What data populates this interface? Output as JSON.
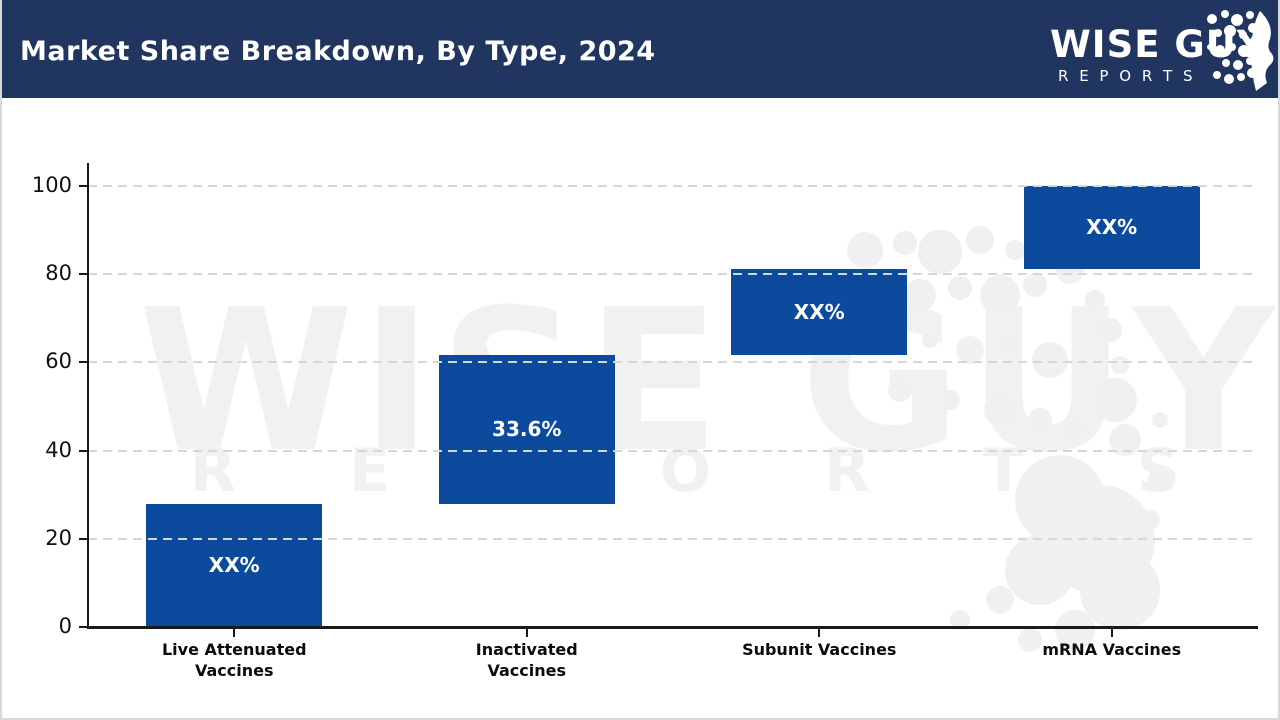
{
  "header": {
    "title": "Market Share Breakdown, By Type, 2024",
    "logo": {
      "line1": "WISE GUY",
      "line2": "R E P O R T S"
    }
  },
  "watermark": {
    "line1": "WISE GUY",
    "line2": "R E P O R T S"
  },
  "chart_data": {
    "type": "bar",
    "subtype": "floating-waterfall",
    "title": "Market Share Breakdown, By Type, 2024",
    "xlabel": "",
    "ylabel": "",
    "ylim": [
      0,
      105
    ],
    "yticks": [
      0,
      20,
      40,
      60,
      80,
      100
    ],
    "grid": "horizontal-dashed",
    "legend": "none",
    "categories": [
      "Live Attenuated Vaccines",
      "Inactivated Vaccines",
      "Subunit Vaccines",
      "mRNA Vaccines"
    ],
    "bars": [
      {
        "category": "Live Attenuated Vaccines",
        "cat_lines": "Live Attenuated\nVaccines",
        "from": 0,
        "to": 28,
        "height": 28,
        "label": "XX%"
      },
      {
        "category": "Inactivated Vaccines",
        "cat_lines": "Inactivated\nVaccines",
        "from": 28,
        "to": 61.6,
        "height": 33.6,
        "label": "33.6%"
      },
      {
        "category": "Subunit Vaccines",
        "cat_lines": "Subunit Vaccines",
        "from": 61.6,
        "to": 81.2,
        "height": 19.6,
        "label": "XX%"
      },
      {
        "category": "mRNA Vaccines",
        "cat_lines": "mRNA Vaccines",
        "from": 81.2,
        "to": 100,
        "height": 18.8,
        "label": "XX%"
      }
    ]
  },
  "colors": {
    "header_bg": "#213561",
    "bar": "#0c4a9e",
    "grid": "#d6d6d6",
    "axis": "#1a1a1a",
    "watermark": "#f1f1f1",
    "page_border": "#d9d9d9",
    "title_text": "#ffffff",
    "bar_label_text": "#ffffff"
  }
}
